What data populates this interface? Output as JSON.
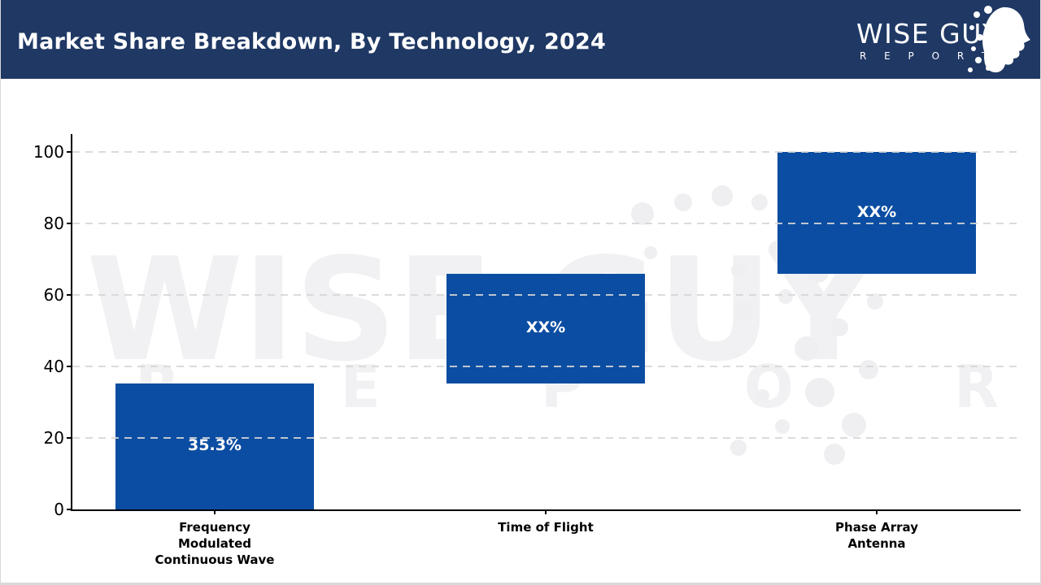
{
  "header": {
    "title": "Market Share Breakdown, By Technology, 2024",
    "logo": {
      "name": "WISE GUY",
      "sub": "R E P O R T S"
    }
  },
  "watermark": {
    "name": "WISE GUY",
    "sub": "R E P O R T S"
  },
  "chart_data": {
    "type": "bar",
    "variant": "waterfall-floating-segments",
    "title": "Market Share Breakdown, By Technology, 2024",
    "categories": [
      "Frequency Modulated Continuous Wave",
      "Time of Flight",
      "Phase Array Antenna"
    ],
    "category_display_lines": [
      [
        "Frequency",
        "Modulated",
        "Continuous Wave"
      ],
      [
        "Time of Flight"
      ],
      [
        "Phase Array",
        "Antenna"
      ]
    ],
    "segments": [
      {
        "category": "Frequency Modulated Continuous Wave",
        "start": 0,
        "end": 35.3,
        "label": "35.3%"
      },
      {
        "category": "Time of Flight",
        "start": 35.3,
        "end": 65.9,
        "label": "XX%"
      },
      {
        "category": "Phase Array Antenna",
        "start": 66,
        "end": 100,
        "label": "XX%"
      }
    ],
    "xlabel": "",
    "ylabel": "",
    "yticks": [
      0,
      20,
      40,
      60,
      80,
      100
    ],
    "ylim": [
      0,
      105
    ],
    "legend": null,
    "grid": {
      "horizontal": true,
      "style": "dashed"
    },
    "colors": {
      "bar": "#0b4da2",
      "grid": "#d9d9d9",
      "axis": "#000000",
      "value_label": "#ffffff",
      "header_bg": "#1f3864",
      "watermark": "#f1f1f3"
    }
  }
}
